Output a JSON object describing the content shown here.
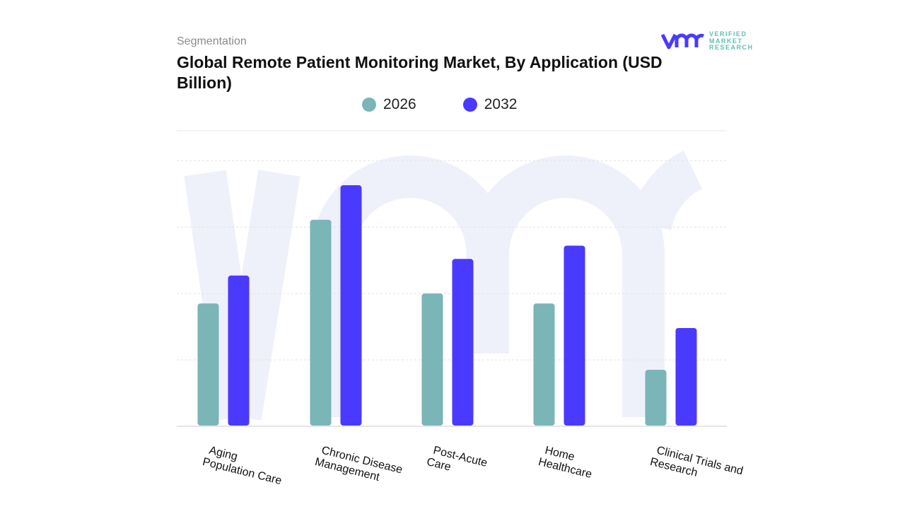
{
  "header": {
    "section": "Segmentation",
    "title": "Global Remote Patient Monitoring Market, By Application (USD Billion)"
  },
  "logo": {
    "text": [
      "VERIFIED",
      "MARKET",
      "RESEARCH"
    ],
    "mark": "vmr"
  },
  "colors": {
    "2026": "#7ab5b8",
    "2032": "#4a3aff",
    "watermark": "#eef1fa"
  },
  "chart_data": {
    "type": "bar",
    "title": "Global Remote Patient Monitoring Market, By Application (USD Billion)",
    "categories": [
      "Aging Population Care",
      "Chronic Disease Management",
      "Post-Acute Care",
      "Home Healthcare",
      "Clinical Trials and Research"
    ],
    "category_lines": [
      [
        "Aging",
        "Population Care"
      ],
      [
        "Chronic Disease",
        "Management"
      ],
      [
        "Post-Acute",
        "Care"
      ],
      [
        "Home",
        "Healthcare"
      ],
      [
        "Clinical Trials and",
        "Research"
      ]
    ],
    "series": [
      {
        "name": "2026",
        "values": [
          1.85,
          3.11,
          2.0,
          1.85,
          0.85
        ]
      },
      {
        "name": "2032",
        "values": [
          2.27,
          3.63,
          2.52,
          2.72,
          1.48
        ]
      }
    ],
    "ylim": [
      0,
      4.45
    ],
    "gridlines": [
      1,
      2,
      3,
      4
    ],
    "grid": true,
    "y_tick_labels_shown": false,
    "legend_placement": "top-center",
    "xlabel": "",
    "ylabel": ""
  }
}
